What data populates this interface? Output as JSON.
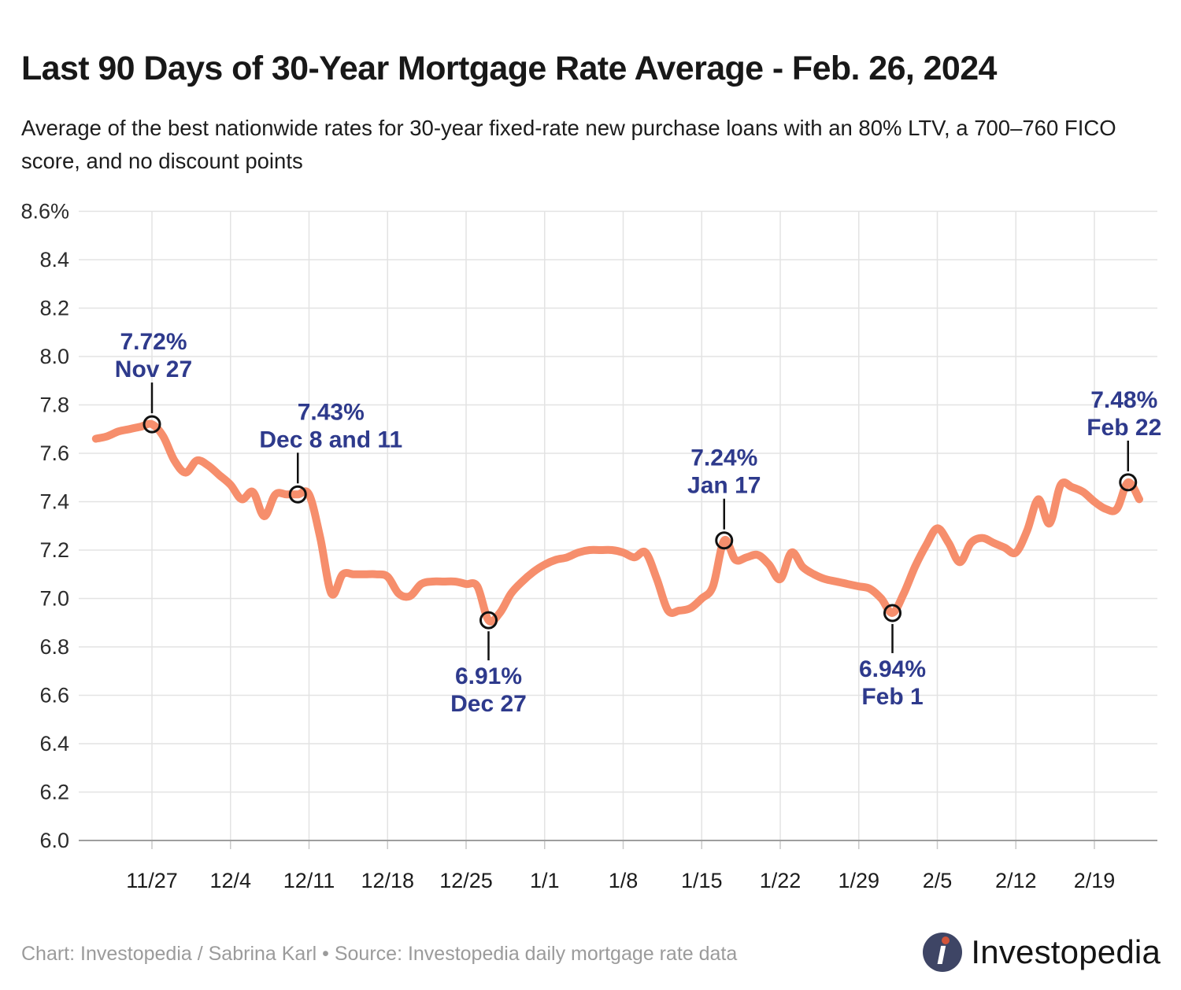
{
  "header": {
    "title": "Last 90 Days of 30-Year Mortgage Rate Average - Feb. 26, 2024",
    "subtitle": "Average of the best nationwide rates for 30-year fixed-rate new purchase loans with an 80% LTV, a 700–760 FICO score, and no discount points"
  },
  "footer": {
    "credit": "Chart: Investopedia / Sabrina Karl • Source: Investopedia daily mortgage rate data",
    "logo_text": "Investopedia"
  },
  "colors": {
    "line": "#F68E6C",
    "annotation": "#2E3A8C",
    "gridline": "#E3E3E3",
    "axis_line": "#9E9E9E",
    "marker_stroke": "#111111",
    "y_label": "#2B2B2B",
    "x_label": "#1C1C1C",
    "logo_circle": "#3E4565",
    "logo_dot": "#D2543A"
  },
  "chart_data": {
    "type": "line",
    "title": "Last 90 Days of 30-Year Mortgage Rate Average - Feb. 26, 2024",
    "xlabel": "",
    "ylabel": "",
    "grid": true,
    "y_axis": {
      "min": 6.0,
      "max": 8.6,
      "step": 0.2,
      "ticks": [
        {
          "label": "8.6%",
          "value": 8.6
        },
        {
          "label": "8.4",
          "value": 8.4
        },
        {
          "label": "8.2",
          "value": 8.2
        },
        {
          "label": "8.0",
          "value": 8.0
        },
        {
          "label": "7.8",
          "value": 7.8
        },
        {
          "label": "7.6",
          "value": 7.6
        },
        {
          "label": "7.4",
          "value": 7.4
        },
        {
          "label": "7.2",
          "value": 7.2
        },
        {
          "label": "7.0",
          "value": 7.0
        },
        {
          "label": "6.8",
          "value": 6.8
        },
        {
          "label": "6.6",
          "value": 6.6
        },
        {
          "label": "6.4",
          "value": 6.4
        },
        {
          "label": "6.2",
          "value": 6.2
        },
        {
          "label": "6.0",
          "value": 6.0
        }
      ]
    },
    "x_axis": {
      "ticks": [
        "11/27",
        "12/4",
        "12/11",
        "12/18",
        "12/25",
        "1/1",
        "1/8",
        "1/15",
        "1/22",
        "1/29",
        "2/5",
        "2/12",
        "2/19"
      ]
    },
    "series": [
      {
        "name": "30-year mortgage rate average",
        "points": [
          [
            "11/22",
            7.66
          ],
          [
            "11/23",
            7.67
          ],
          [
            "11/24",
            7.69
          ],
          [
            "11/25",
            7.7
          ],
          [
            "11/26",
            7.71
          ],
          [
            "11/27",
            7.72
          ],
          [
            "11/28",
            7.67
          ],
          [
            "11/29",
            7.57
          ],
          [
            "11/30",
            7.52
          ],
          [
            "12/1",
            7.57
          ],
          [
            "12/2",
            7.55
          ],
          [
            "12/3",
            7.51
          ],
          [
            "12/4",
            7.47
          ],
          [
            "12/5",
            7.41
          ],
          [
            "12/6",
            7.44
          ],
          [
            "12/7",
            7.34
          ],
          [
            "12/8",
            7.43
          ],
          [
            "12/9",
            7.43
          ],
          [
            "12/10",
            7.43
          ],
          [
            "12/11",
            7.43
          ],
          [
            "12/12",
            7.25
          ],
          [
            "12/13",
            7.02
          ],
          [
            "12/14",
            7.1
          ],
          [
            "12/15",
            7.1
          ],
          [
            "12/16",
            7.1
          ],
          [
            "12/17",
            7.1
          ],
          [
            "12/18",
            7.09
          ],
          [
            "12/19",
            7.02
          ],
          [
            "12/20",
            7.01
          ],
          [
            "12/21",
            7.06
          ],
          [
            "12/22",
            7.07
          ],
          [
            "12/23",
            7.07
          ],
          [
            "12/24",
            7.07
          ],
          [
            "12/25",
            7.06
          ],
          [
            "12/26",
            7.05
          ],
          [
            "12/27",
            6.91
          ],
          [
            "12/28",
            6.94
          ],
          [
            "12/29",
            7.02
          ],
          [
            "12/30",
            7.07
          ],
          [
            "12/31",
            7.11
          ],
          [
            "1/1",
            7.14
          ],
          [
            "1/2",
            7.16
          ],
          [
            "1/3",
            7.17
          ],
          [
            "1/4",
            7.19
          ],
          [
            "1/5",
            7.2
          ],
          [
            "1/6",
            7.2
          ],
          [
            "1/7",
            7.2
          ],
          [
            "1/8",
            7.19
          ],
          [
            "1/9",
            7.17
          ],
          [
            "1/10",
            7.19
          ],
          [
            "1/11",
            7.08
          ],
          [
            "1/12",
            6.95
          ],
          [
            "1/13",
            6.95
          ],
          [
            "1/14",
            6.96
          ],
          [
            "1/15",
            7.0
          ],
          [
            "1/16",
            7.05
          ],
          [
            "1/17",
            7.24
          ],
          [
            "1/18",
            7.16
          ],
          [
            "1/19",
            7.17
          ],
          [
            "1/20",
            7.18
          ],
          [
            "1/21",
            7.14
          ],
          [
            "1/22",
            7.08
          ],
          [
            "1/23",
            7.19
          ],
          [
            "1/24",
            7.13
          ],
          [
            "1/25",
            7.1
          ],
          [
            "1/26",
            7.08
          ],
          [
            "1/27",
            7.07
          ],
          [
            "1/28",
            7.06
          ],
          [
            "1/29",
            7.05
          ],
          [
            "1/30",
            7.04
          ],
          [
            "1/31",
            7.0
          ],
          [
            "2/1",
            6.94
          ],
          [
            "2/2",
            7.02
          ],
          [
            "2/3",
            7.13
          ],
          [
            "2/4",
            7.22
          ],
          [
            "2/5",
            7.29
          ],
          [
            "2/6",
            7.23
          ],
          [
            "2/7",
            7.15
          ],
          [
            "2/8",
            7.23
          ],
          [
            "2/9",
            7.25
          ],
          [
            "2/10",
            7.23
          ],
          [
            "2/11",
            7.21
          ],
          [
            "2/12",
            7.19
          ],
          [
            "2/13",
            7.28
          ],
          [
            "2/14",
            7.41
          ],
          [
            "2/15",
            7.31
          ],
          [
            "2/16",
            7.47
          ],
          [
            "2/17",
            7.46
          ],
          [
            "2/18",
            7.44
          ],
          [
            "2/19",
            7.4
          ],
          [
            "2/20",
            7.37
          ],
          [
            "2/21",
            7.37
          ],
          [
            "2/22",
            7.48
          ],
          [
            "2/23",
            7.41
          ]
        ]
      }
    ],
    "annotations": [
      {
        "rate_label": "7.72%",
        "date_label": "Nov 27",
        "anchor_date": "11/27",
        "placement": "above",
        "dx": 2
      },
      {
        "rate_label": "7.43%",
        "date_label": "Dec 8 and 11",
        "anchor_date": "12/10",
        "placement": "above",
        "dx": 42
      },
      {
        "rate_label": "6.91%",
        "date_label": "Dec 27",
        "anchor_date": "12/27",
        "placement": "below",
        "dx": 0
      },
      {
        "rate_label": "7.24%",
        "date_label": "Jan 17",
        "anchor_date": "1/17",
        "placement": "above",
        "dx": 0
      },
      {
        "rate_label": "6.94%",
        "date_label": "Feb 1",
        "anchor_date": "2/1",
        "placement": "below",
        "dx": 0
      },
      {
        "rate_label": "7.48%",
        "date_label": "Feb 22",
        "anchor_date": "2/22",
        "placement": "above",
        "dx": -5
      }
    ]
  }
}
